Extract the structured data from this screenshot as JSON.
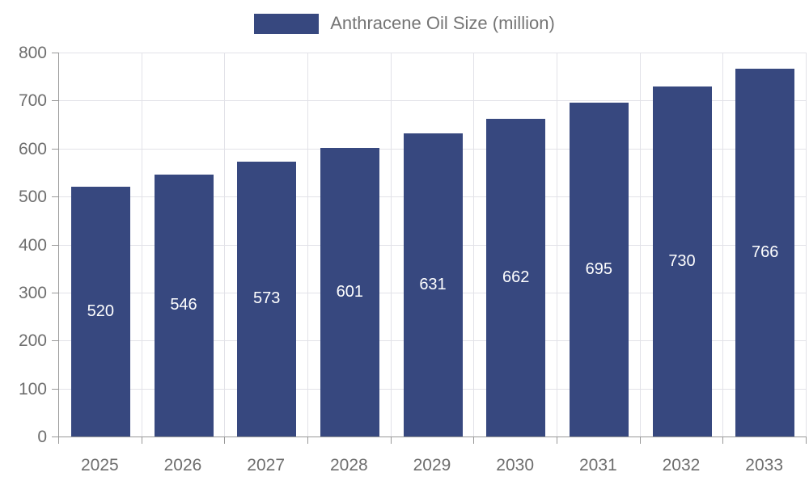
{
  "legend": {
    "label": "Anthracene Oil Size (million)"
  },
  "colors": {
    "bar": "#37487f",
    "bar_label": "#ffffff",
    "axis_line": "#999999",
    "grid_line": "#e2e2e8",
    "tick_label": "#6e6e6e",
    "legend_text": "#757575"
  },
  "chart_data": {
    "type": "bar",
    "title": "",
    "xlabel": "",
    "ylabel": "",
    "categories": [
      "2025",
      "2026",
      "2027",
      "2028",
      "2029",
      "2030",
      "2031",
      "2032",
      "2033"
    ],
    "values": [
      520,
      546,
      573,
      601,
      631,
      662,
      695,
      730,
      766
    ],
    "ylim": [
      0,
      800
    ],
    "ytick_interval": 100,
    "yticks": [
      0,
      100,
      200,
      300,
      400,
      500,
      600,
      700,
      800
    ],
    "grid": true,
    "legend_entries": [
      "Anthracene Oil Size (million)"
    ],
    "legend_position": "top",
    "bar_value_labels_inside": true
  }
}
